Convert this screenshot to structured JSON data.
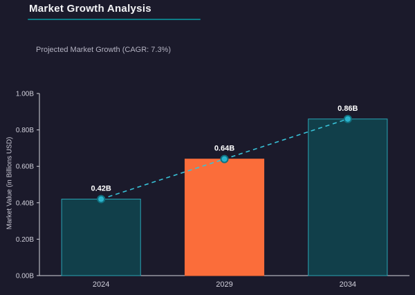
{
  "header": {
    "title": "Market Growth Analysis",
    "subtitle": "Projected Market Growth (CAGR: 7.3%)"
  },
  "chart_data": {
    "type": "bar",
    "title": "Market Growth Analysis",
    "subtitle": "Projected Market Growth (CAGR: 7.3%)",
    "categories": [
      "2024",
      "2029",
      "2034"
    ],
    "values": [
      0.42,
      0.64,
      0.86
    ],
    "value_labels": [
      "0.42B",
      "0.64B",
      "0.86B"
    ],
    "ylabel": "Market Value (in Billions USD)",
    "xlabel": "",
    "yticks": [
      "0.00B",
      "0.20B",
      "0.40B",
      "0.60B",
      "0.80B",
      "1.00B"
    ],
    "ytick_values": [
      0,
      0.2,
      0.4,
      0.6,
      0.8,
      1.0
    ],
    "ylim": [
      0,
      1.0
    ],
    "grid": false,
    "legend": "none",
    "trendline": true,
    "colors": {
      "background": "#1b1a2b",
      "bar_fills": [
        "#113f4a",
        "#fb6d3a",
        "#113f4a"
      ],
      "bar_strokes": [
        "#2aa4b4",
        "#fb6d3a",
        "#2aa4b4"
      ],
      "trend_line": "#38c2d8",
      "marker_fill": "#2ab3cc",
      "marker_stroke": "#11707f",
      "axis": "#d6d6de",
      "tick_text": "#d2d1dc",
      "value_text": "#ffffff",
      "accent_underline": "#0e7c86"
    }
  }
}
